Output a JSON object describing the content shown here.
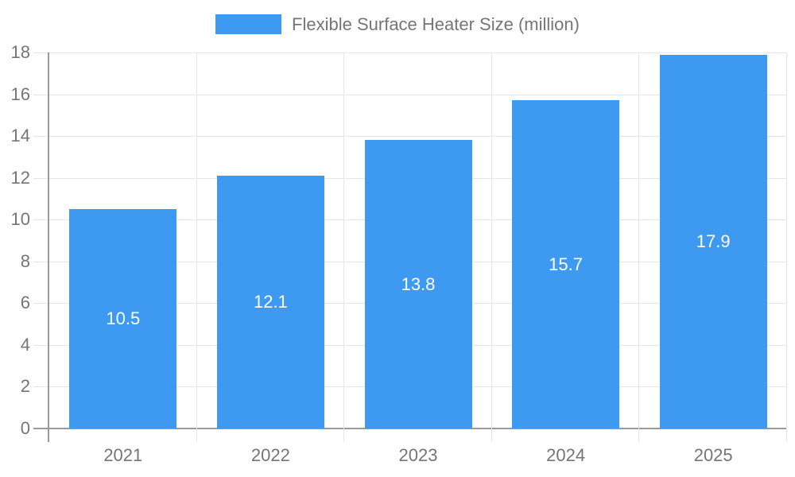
{
  "chart_data": {
    "type": "bar",
    "title": "",
    "series_name": "Flexible Surface Heater Size (million)",
    "categories": [
      "2021",
      "2022",
      "2023",
      "2024",
      "2025"
    ],
    "values": [
      10.5,
      12.1,
      13.8,
      15.7,
      17.9
    ],
    "value_label_format": [
      "10.5",
      "12.1",
      "13.8",
      "15.7",
      "17.9"
    ],
    "xlabel": "",
    "ylabel": "",
    "ylim": [
      0,
      18
    ],
    "ytick_step": 2,
    "yticks": [
      "0",
      "2",
      "4",
      "6",
      "8",
      "10",
      "12",
      "14",
      "16",
      "18"
    ],
    "grid": true,
    "legend_position": "top",
    "value_label_position": "inside-center",
    "colors": {
      "bar": "#3E9AF0",
      "value_label": "#ffffff",
      "tick_label": "#757575",
      "legend_label": "#757575",
      "axis_line": "#9a9a9a",
      "gridline": "#e6e6e6",
      "background": "#ffffff"
    }
  }
}
